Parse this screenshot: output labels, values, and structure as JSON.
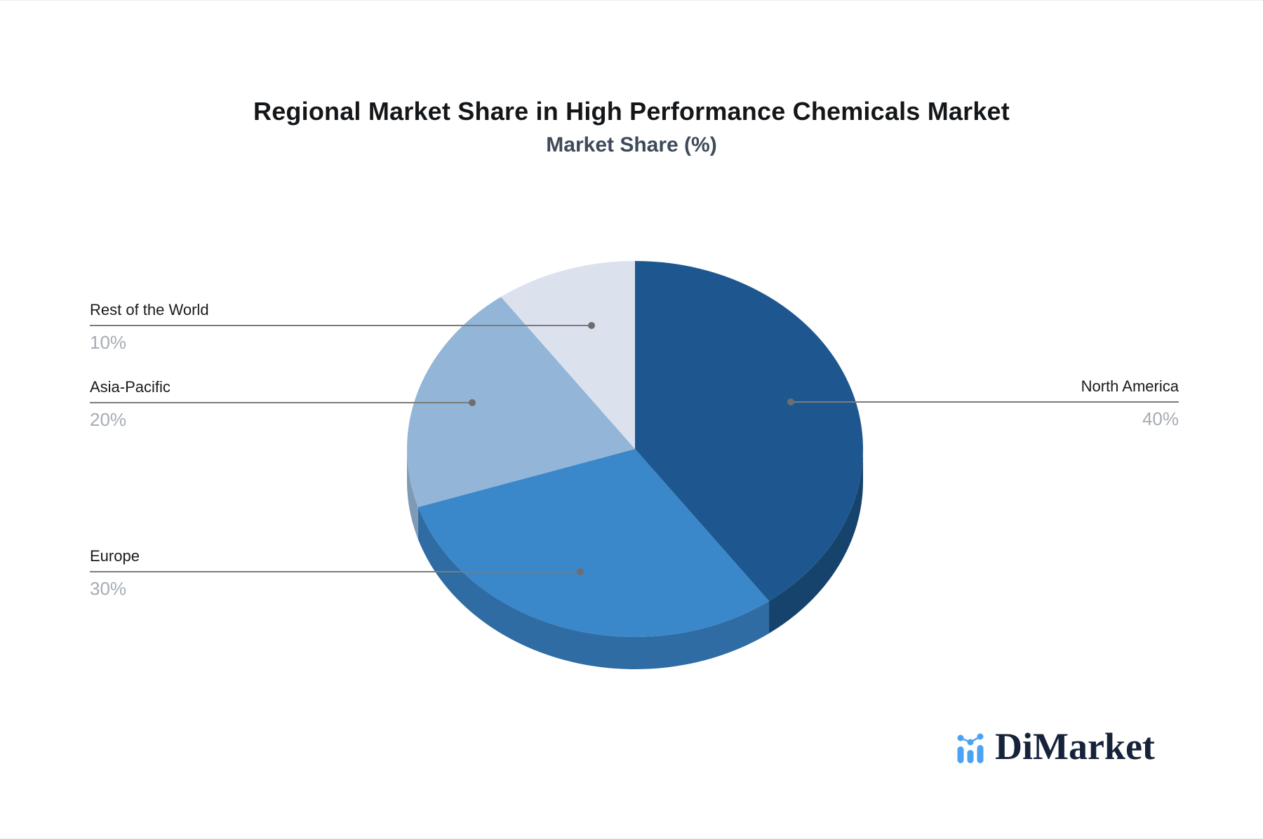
{
  "page": {
    "title": "Regional Market Share in High Performance Chemicals Market",
    "subtitle": "Market Share (%)"
  },
  "chart_data": {
    "type": "pie",
    "style": "3d",
    "title": "Regional Market Share in High Performance Chemicals Market",
    "subtitle": "Market Share (%)",
    "unit": "%",
    "direction": "clockwise",
    "start_angle_deg": 0,
    "legend_position": "callout-labels",
    "slices": [
      {
        "name": "North America",
        "value": 40,
        "pct_label": "40%",
        "color": "#1E578F",
        "side_color": "#16436C",
        "callout_side": "right"
      },
      {
        "name": "Europe",
        "value": 30,
        "pct_label": "30%",
        "color": "#3A87CA",
        "side_color": "#2E6CA3",
        "callout_side": "left"
      },
      {
        "name": "Asia-Pacific",
        "value": 20,
        "pct_label": "20%",
        "color": "#92B5D8",
        "side_color": "#7F9AB5",
        "callout_side": "left"
      },
      {
        "name": "Rest of the World",
        "value": 10,
        "pct_label": "10%",
        "color": "#DBE2EE",
        "side_color": "#C3CDDD",
        "callout_side": "left"
      }
    ]
  },
  "branding": {
    "logo_text": "DiMarket",
    "logo_icon": "bar-line-chart-icon",
    "logo_icon_color": "#4BA3F1",
    "logo_text_color": "#16233A"
  },
  "styles": {
    "background": "#FFFFFF",
    "title_color": "#14171A",
    "subtitle_color": "#3E4A5A",
    "label_color": "#1A1A1A",
    "pct_color": "#A6ACB4",
    "leader_line_color": "#7B7B7B",
    "leader_dot_color": "#6E6E6E"
  }
}
